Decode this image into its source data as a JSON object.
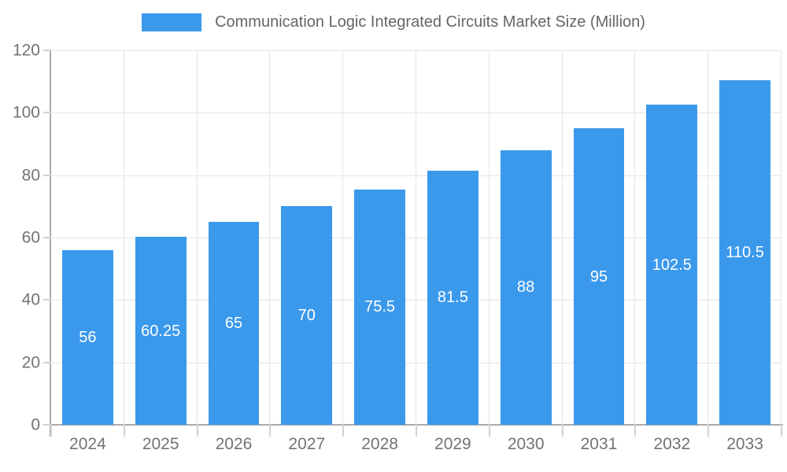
{
  "legend": {
    "label": "Communication Logic Integrated Circuits Market Size (Million)"
  },
  "chart_data": {
    "type": "bar",
    "title": "Communication Logic Integrated Circuits Market Size (Million)",
    "categories": [
      "2024",
      "2025",
      "2026",
      "2027",
      "2028",
      "2029",
      "2030",
      "2031",
      "2032",
      "2033"
    ],
    "values": [
      56,
      60.25,
      65,
      70,
      75.5,
      81.5,
      88,
      95,
      102.5,
      110.5
    ],
    "value_labels": [
      "56",
      "60.25",
      "65",
      "70",
      "75.5",
      "81.5",
      "88",
      "95",
      "102.5",
      "110.5"
    ],
    "value_label_position": "inside-center",
    "xlabel": "",
    "ylabel": "",
    "ylim": [
      0,
      120
    ],
    "yticks": [
      0,
      20,
      40,
      60,
      80,
      100,
      120
    ],
    "grid": true,
    "legend_position": "top",
    "colors": {
      "bar": "#3B99EC",
      "grid": "#E4E4E4",
      "axis": "#ABABAB",
      "tick": "#D2D2D2",
      "axis_label": "#737373",
      "legend_text": "#666666",
      "value_label": "#FFFFFF",
      "background": "#FFFFFF"
    }
  }
}
